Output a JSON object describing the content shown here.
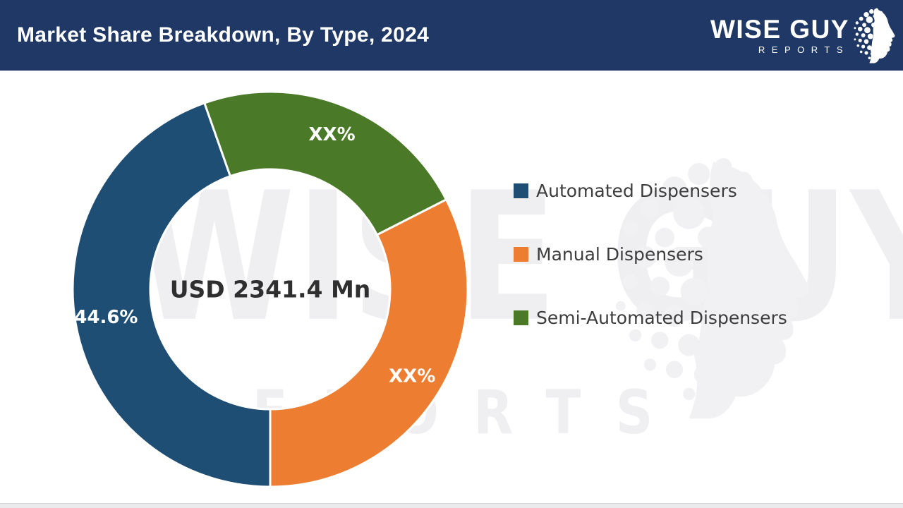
{
  "header": {
    "title": "Market Share Breakdown, By Type, 2024",
    "background_color": "#1F3866",
    "logo": {
      "line1": "WISE GUY",
      "line2": "REPORTS"
    }
  },
  "watermark": {
    "line1": "WISE GUY",
    "line2": "REPORTS"
  },
  "chart_data": {
    "type": "pie",
    "subtype": "donut",
    "title": "Market Share Breakdown, By Type, 2024",
    "center_label": "USD 2341.4 Mn",
    "start_angle_deg": 180,
    "direction": "clockwise",
    "segments": [
      {
        "name": "Automated Dispensers",
        "value_pct": 44.6,
        "label": "44.6%",
        "color": "#1F4E74"
      },
      {
        "name": "Semi-Automated Dispensers",
        "value_pct": 22.9,
        "label": "XX%",
        "color": "#4A7A28"
      },
      {
        "name": "Manual Dispensers",
        "value_pct": 32.5,
        "label": "XX%",
        "color": "#ED7D31"
      }
    ],
    "legend_order": [
      0,
      2,
      1
    ],
    "legend_position": "right",
    "label_text_color": "#ffffff"
  }
}
